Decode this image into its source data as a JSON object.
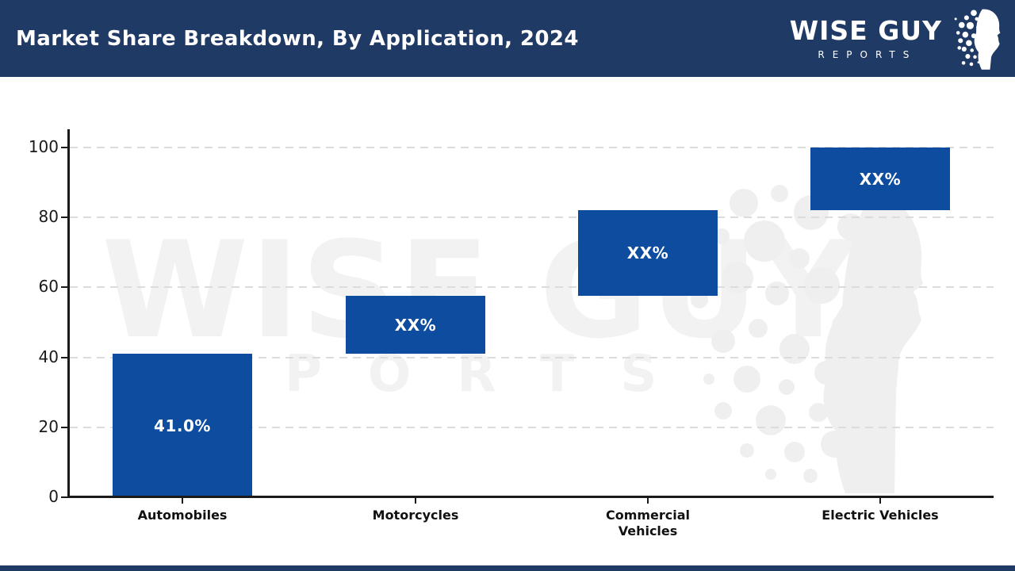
{
  "header": {
    "title": "Market Share Breakdown, By Application, 2024",
    "logo": {
      "line1": "WISE GUY",
      "line2": "REPORTS"
    }
  },
  "watermark": {
    "line1": "WISE GUY",
    "line2": "REPORTS"
  },
  "colors": {
    "header_bg": "#203A66",
    "footer_bg": "#203A66",
    "bar_fill": "#0D4C9E",
    "bar_label": "#FFFFFF",
    "watermark": "#F2F2F2",
    "gridline": "#DCDCDC",
    "axis": "#1A1A1A"
  },
  "chart_data": {
    "type": "bar",
    "subtype": "waterfall",
    "title": "Market Share Breakdown, By Application, 2024",
    "categories": [
      "Automobiles",
      "Motorcycles",
      "Commercial Vehicles",
      "Electric Vehicles"
    ],
    "tick_labels": [
      "Automobiles",
      "Motorcycles",
      "Commercial\nVehicles",
      "Electric Vehicles"
    ],
    "segments": [
      {
        "category": "Automobiles",
        "start": 0,
        "end": 41.0,
        "label": "41.0%"
      },
      {
        "category": "Motorcycles",
        "start": 41.0,
        "end": 57.5,
        "label": "XX%"
      },
      {
        "category": "Commercial Vehicles",
        "start": 57.5,
        "end": 82.0,
        "label": "XX%"
      },
      {
        "category": "Electric Vehicles",
        "start": 82.0,
        "end": 100.0,
        "label": "XX%"
      }
    ],
    "values": [
      41.0,
      16.5,
      24.5,
      18.0
    ],
    "xlabel": "",
    "ylabel": "",
    "ylim": [
      0,
      100
    ],
    "yticks": [
      0,
      20,
      40,
      60,
      80,
      100
    ],
    "grid": "horizontal-dashed",
    "legend": "none"
  }
}
